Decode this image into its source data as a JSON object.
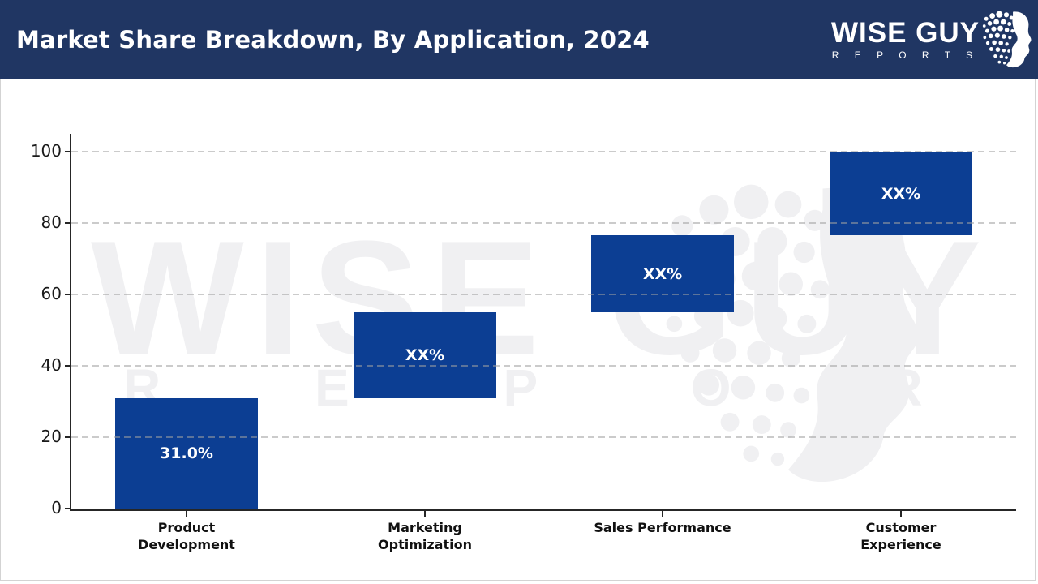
{
  "header": {
    "title": "Market Share Breakdown, By Application, 2024",
    "logo": {
      "name_top": "WISE GUY",
      "name_bottom": "R E P O R T S",
      "head_icon": "dotted-face-profile"
    }
  },
  "watermark": {
    "line1": "WISE GUY",
    "line2": "R E P O R T S",
    "head_icon": "dotted-face-profile"
  },
  "colors": {
    "header_bg": "#203663",
    "bar": "#0c3e93",
    "bar_label": "#ffffff",
    "axis": "#262626",
    "tick_label": "#1a1a1a",
    "category_label": "#111111",
    "gridline": "rgba(160,160,160,0.55)",
    "watermark": "#f0f0f2",
    "card_border": "#d3d3d3",
    "background": "#ffffff"
  },
  "chart_data": {
    "type": "bar",
    "subtype": "waterfall",
    "title": "Market Share Breakdown, By Application, 2024",
    "categories": [
      "Product Development",
      "Marketing Optimization",
      "Sales Performance",
      "Customer Experience"
    ],
    "category_label_lines": [
      [
        "Product",
        "Development"
      ],
      [
        "Marketing",
        "Optimization"
      ],
      [
        "Sales Performance"
      ],
      [
        "Customer",
        "Experience"
      ]
    ],
    "segments": [
      {
        "category": "Product Development",
        "start": 0,
        "end": 31,
        "label": "31.0%"
      },
      {
        "category": "Marketing Optimization",
        "start": 31,
        "end": 55,
        "label": "XX%"
      },
      {
        "category": "Sales Performance",
        "start": 55,
        "end": 76.5,
        "label": "XX%"
      },
      {
        "category": "Customer Experience",
        "start": 76.5,
        "end": 100,
        "label": "XX%"
      }
    ],
    "ylim": [
      0,
      100
    ],
    "yticks": [
      0,
      20,
      40,
      60,
      80,
      100
    ],
    "grid": "horizontal-dashed",
    "legend": "none"
  }
}
